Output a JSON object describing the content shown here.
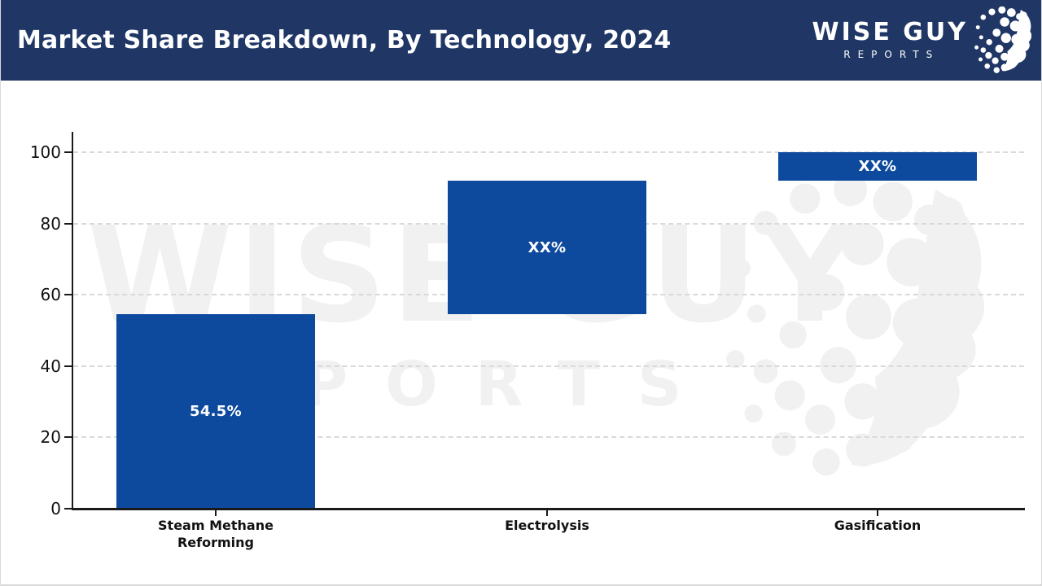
{
  "header": {
    "title": "Market Share Breakdown, By Technology, 2024",
    "logo": {
      "line1": "WISE GUY",
      "line2": "REPORTS"
    },
    "bg_color": "#203766"
  },
  "watermark": {
    "line1": "WISE GUY",
    "line2": "REPORTS"
  },
  "chart_data": {
    "type": "bar",
    "subtype": "waterfall-floating-segments",
    "title": "Market Share Breakdown, By Technology, 2024",
    "categories": [
      "Steam Methane Reforming",
      "Electrolysis",
      "Gasification"
    ],
    "bars": [
      {
        "category": "Steam Methane Reforming",
        "from": 0,
        "to": 54.5,
        "label": "54.5%"
      },
      {
        "category": "Electrolysis",
        "from": 54.5,
        "to": 92,
        "label": "XX%"
      },
      {
        "category": "Gasification",
        "from": 92,
        "to": 100,
        "label": "XX%"
      }
    ],
    "xlabel": "",
    "ylabel": "",
    "yticks": [
      0,
      20,
      40,
      60,
      80,
      100
    ],
    "ylim": [
      0,
      107
    ],
    "bar_color": "#0d4a9e",
    "label_color": "#ffffff",
    "grid": {
      "axis": "y",
      "style": "dashed",
      "color": "#d9d9d9"
    },
    "legend": "none"
  }
}
